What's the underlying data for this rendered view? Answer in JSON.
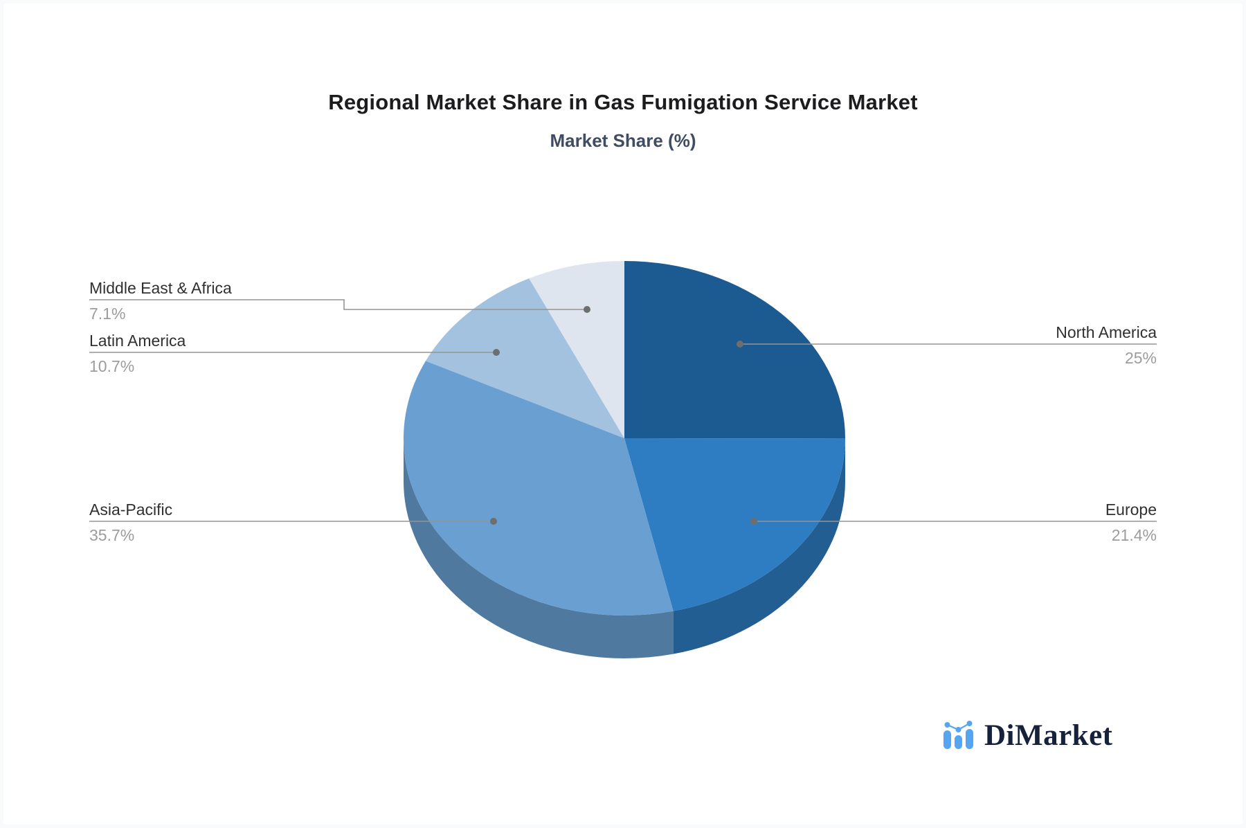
{
  "header": {
    "title": "Regional Market Share in Gas Fumigation Service Market",
    "subtitle": "Market Share (%)"
  },
  "chart_data": {
    "type": "pie",
    "title": "Regional Market Share in Gas Fumigation Service Market",
    "subtitle": "Market Share (%)",
    "unit": "%",
    "label_position": "outside",
    "start_angle_deg": 0,
    "direction": "clockwise",
    "style": "3d-pie",
    "categories": [
      "North America",
      "Europe",
      "Asia-Pacific",
      "Latin America",
      "Middle East & Africa"
    ],
    "values": [
      25,
      21.4,
      35.7,
      10.7,
      7.1
    ],
    "slices": [
      {
        "label": "North America",
        "value": 25,
        "display": "25%",
        "color": "#1C5A92"
      },
      {
        "label": "Europe",
        "value": 21.4,
        "display": "21.4%",
        "color": "#2E7CC1"
      },
      {
        "label": "Asia-Pacific",
        "value": 35.7,
        "display": "35.7%",
        "color": "#699FD1"
      },
      {
        "label": "Latin America",
        "value": 10.7,
        "display": "10.7%",
        "color": "#A3C2E0"
      },
      {
        "label": "Middle East & Africa",
        "value": 7.1,
        "display": "7.1%",
        "color": "#DEE5EF"
      }
    ],
    "colors": {
      "label_text": "#303030",
      "value_text": "#9c9c9c",
      "leader_line": "#949494",
      "leader_dot": "#6e6e6e"
    }
  },
  "logo": {
    "text": "DiMarket",
    "icon": "bar-chart-trend-icon",
    "icon_color": "#55a6f2",
    "text_color": "#16213c"
  }
}
